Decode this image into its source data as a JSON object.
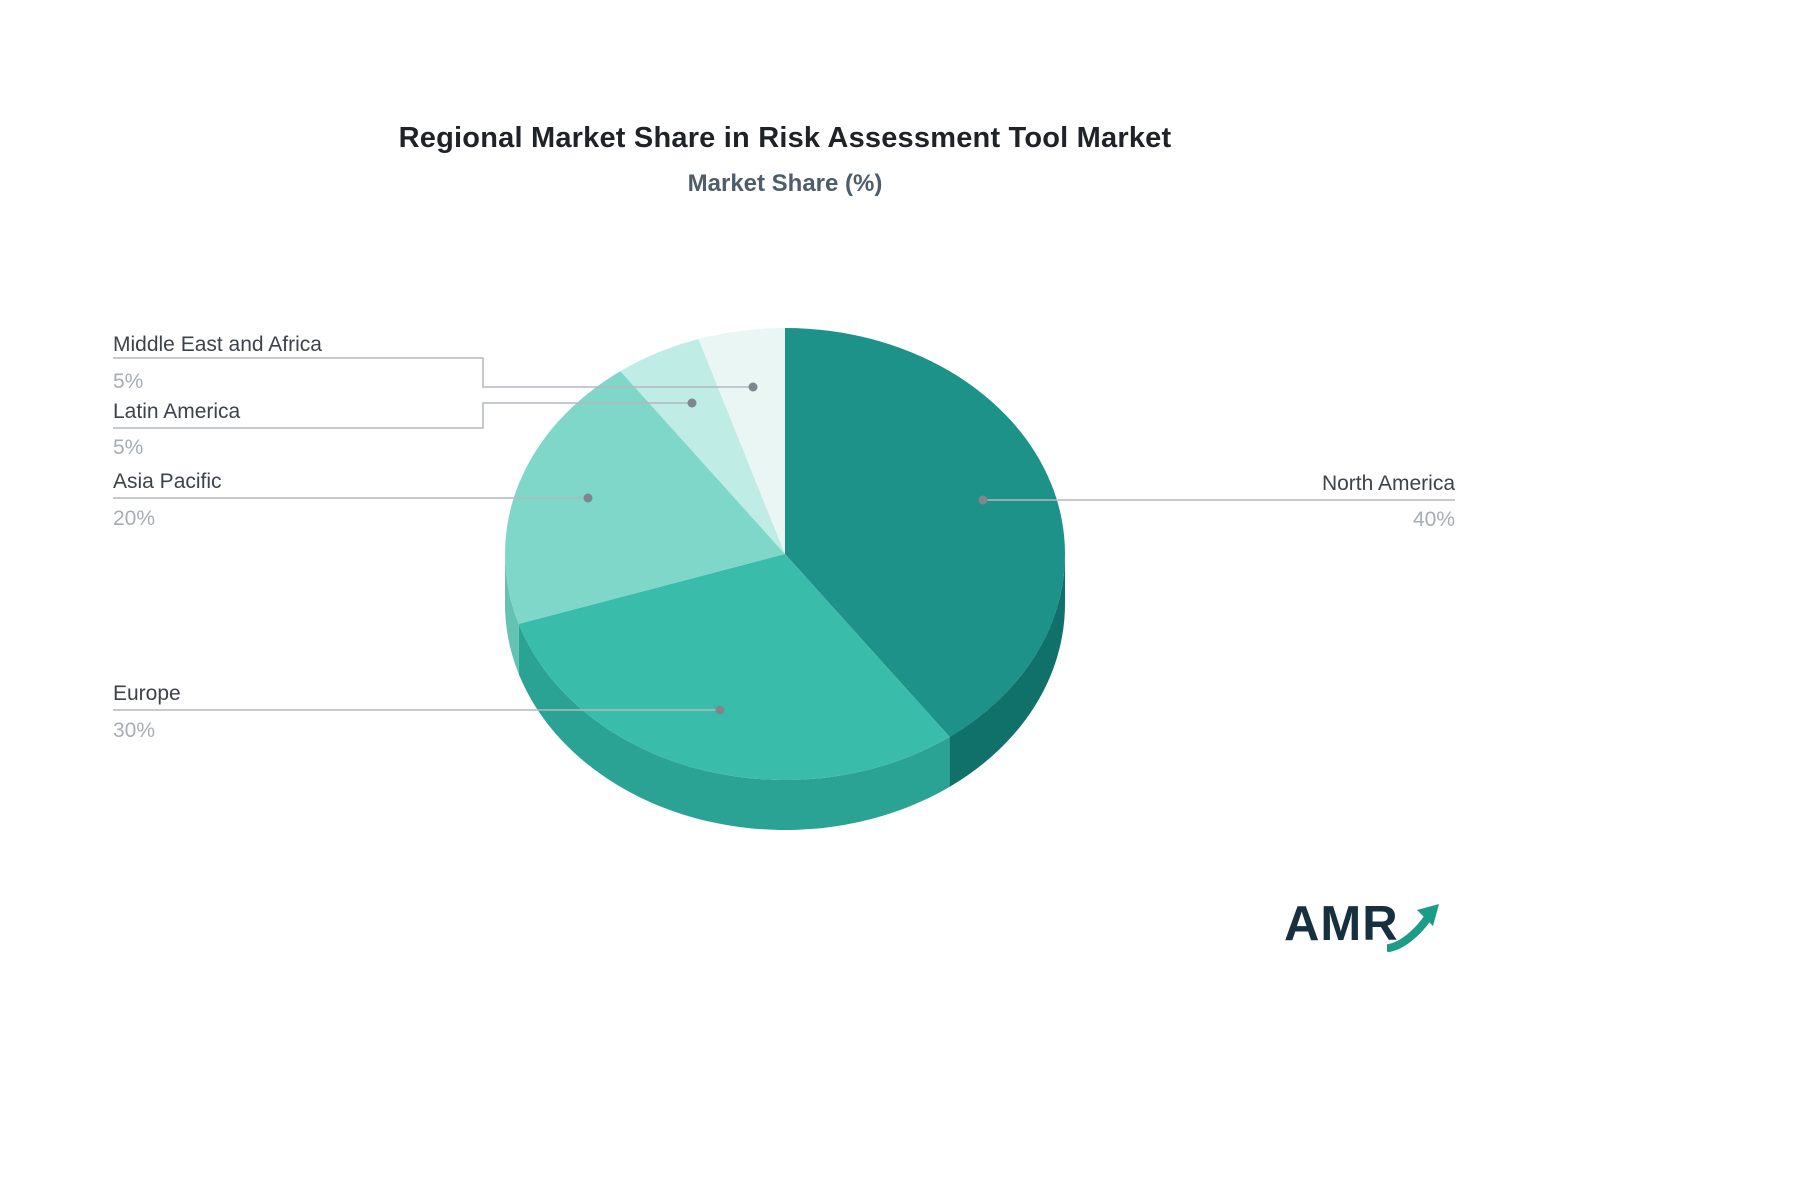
{
  "chart_data": {
    "type": "pie",
    "title": "Regional Market Share in Risk Assessment Tool Market",
    "subtitle": "Market Share (%)",
    "unit": "%",
    "labels": [
      "North America",
      "Europe",
      "Asia Pacific",
      "Latin America",
      "Middle East and Africa"
    ],
    "values": [
      40,
      30,
      20,
      5,
      5
    ],
    "colors": [
      "#1d9288",
      "#3abcab",
      "#7ed7c9",
      "#bfece5",
      "#e9f6f4"
    ],
    "depth_colors": [
      "#0f7169",
      "#2ba394",
      "#63c2b2",
      "#9fd8cd",
      "#cfeae3"
    ],
    "start_angle_deg": -90,
    "clockwise": true,
    "effect": "3d",
    "legend_position": "none",
    "line_color": "#b3b9be",
    "dot_color": "#7f868d",
    "label_name_color": "#3d434b",
    "label_value_color": "#a6adb4"
  },
  "logo": {
    "text": "AMR",
    "arrow_color": "#1b9c86"
  }
}
